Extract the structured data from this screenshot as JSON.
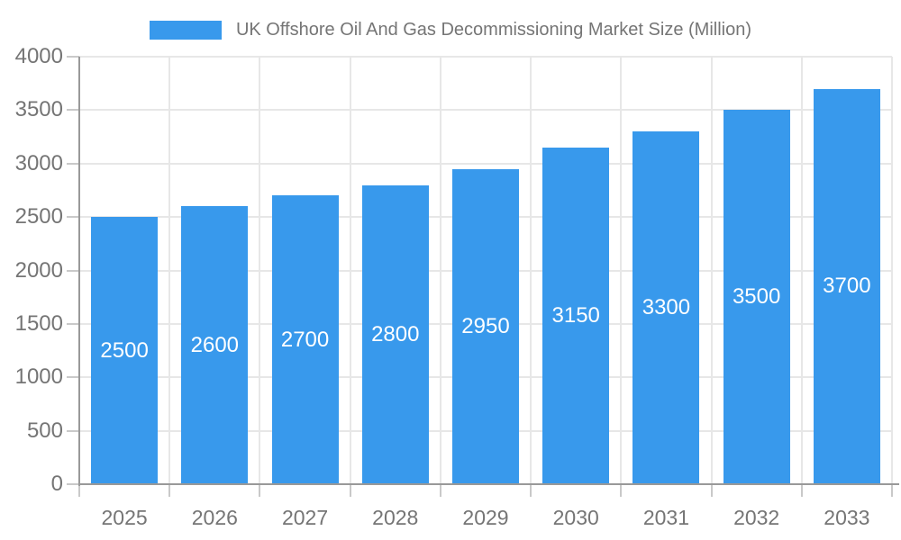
{
  "chart_data": {
    "type": "bar",
    "title": "UK Offshore Oil And Gas Decommissioning Market Size (Million)",
    "legend": {
      "position": "top",
      "label": "UK Offshore Oil And Gas Decommissioning Market Size (Million)"
    },
    "categories": [
      "2025",
      "2026",
      "2027",
      "2028",
      "2029",
      "2030",
      "2031",
      "2032",
      "2033"
    ],
    "values": [
      2500,
      2600,
      2700,
      2800,
      2950,
      3150,
      3300,
      3500,
      3700
    ],
    "bar_value_labels": [
      "2500",
      "2600",
      "2700",
      "2800",
      "2950",
      "3150",
      "3300",
      "3500",
      "3700"
    ],
    "xlabel": "",
    "ylabel": "",
    "ylim": [
      0,
      4000
    ],
    "yticks": [
      0,
      500,
      1000,
      1500,
      2000,
      2500,
      3000,
      3500,
      4000
    ],
    "grid": "on",
    "colors": {
      "bar": "#3899EC",
      "axis_text": "#757575",
      "bar_label": "#ffffff",
      "gridline": "#e7e7e7",
      "axis_line": "#999999",
      "tick": "#c9c9c9",
      "background": "#ffffff"
    }
  }
}
